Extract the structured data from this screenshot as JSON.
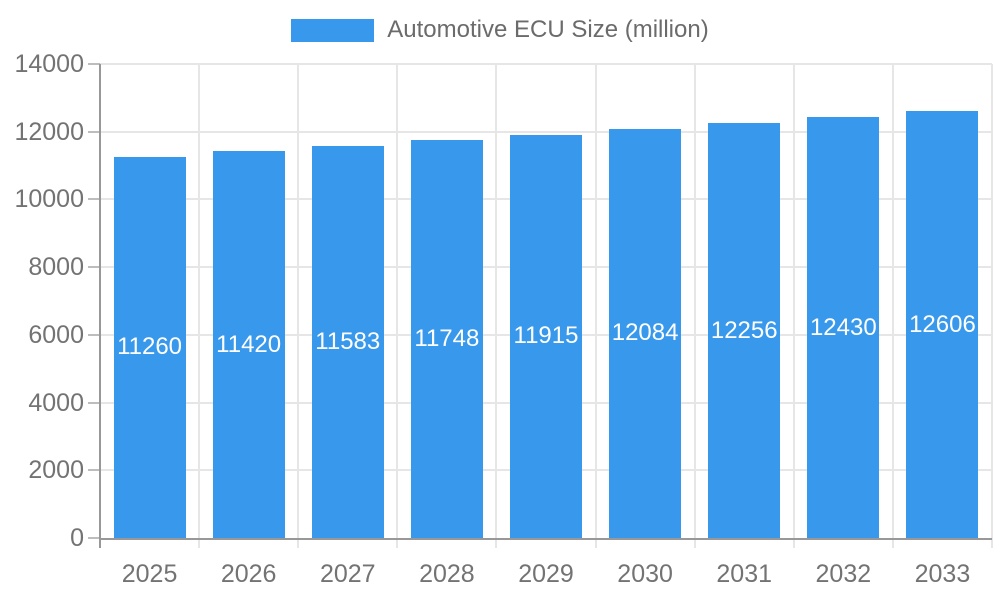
{
  "chart_data": {
    "type": "bar",
    "title": "",
    "legend": {
      "label": "Automotive ECU Size (million)",
      "position": "top"
    },
    "categories": [
      "2025",
      "2026",
      "2027",
      "2028",
      "2029",
      "2030",
      "2031",
      "2032",
      "2033"
    ],
    "series": [
      {
        "name": "Automotive ECU Size (million)",
        "values": [
          11260,
          11420,
          11583,
          11748,
          11915,
          12084,
          12256,
          12430,
          12606
        ]
      }
    ],
    "data_labels": "inside-center",
    "ylim": [
      0,
      14000
    ],
    "yticks": [
      0,
      2000,
      4000,
      6000,
      8000,
      10000,
      12000,
      14000
    ],
    "grid": true,
    "colors": {
      "bar": "#3899EC",
      "value_label": "#ffffff",
      "axis_text": "#737373",
      "legend_text": "#6b6b6b",
      "gridline": "#e6e6e6",
      "axis_line": "#989898",
      "tick": "#bdbdbd",
      "background": "#ffffff"
    }
  }
}
